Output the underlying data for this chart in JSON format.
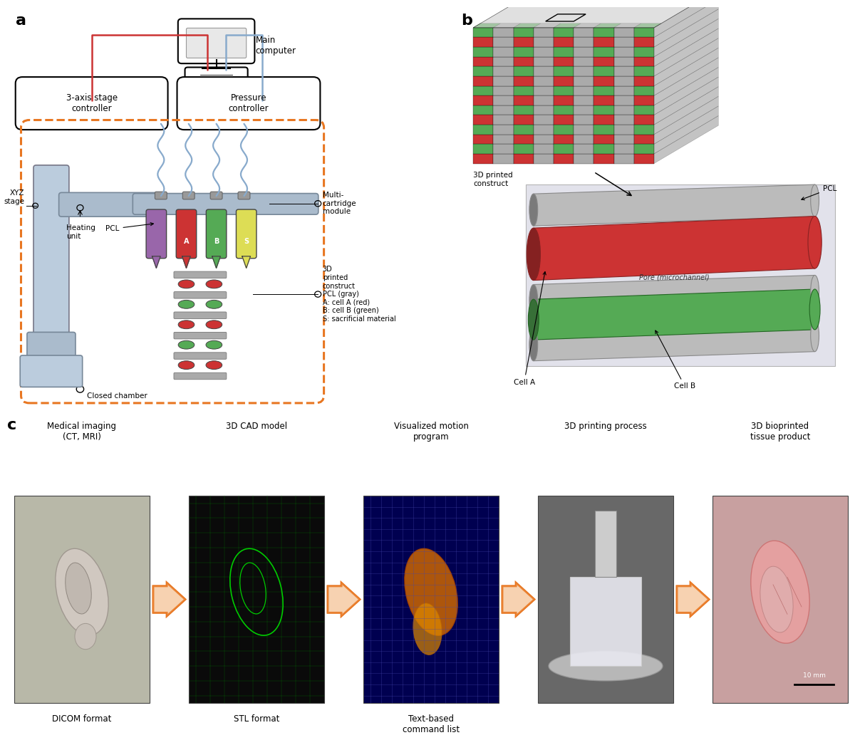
{
  "fig_width": 12.0,
  "fig_height": 10.39,
  "bg_color": "#ffffff",
  "panel_a_label": "a",
  "panel_b_label": "b",
  "panel_c_label": "c",
  "label_fontsize": 16,
  "body_fontsize": 8.5,
  "small_fontsize": 7.5,
  "orange_color": "#E87722",
  "blue_line": "#88AACC",
  "red_line": "#CC3333",
  "gray_stage": "#AABBCC",
  "purple_color": "#9966AA",
  "red_color": "#CC3333",
  "green_color": "#55AA55",
  "yellow_color": "#DDDD55",
  "pcl_gray": "#AAAAAA",
  "silver_color": "#BBBBBB",
  "multicartridge_label": "Multi-\ncartridge\nmodule",
  "printed_construct_label": "3D\nprinted\nconstruct\nPCL (gray)\nA: cell A (red)\nB: cell B (green)\nS: sacrificial material",
  "xyz_stage_label": "XYZ\nstage",
  "heating_unit_label": "Heating\nunit",
  "closed_chamber_label": "Closed chamber",
  "main_computer_label": "Main\ncomputer",
  "axis_controller_label": "3-axis stage\ncontroller",
  "pressure_controller_label": "Pressure\ncontroller",
  "pcl_label": "PCL",
  "panel_b_construct_label": "3D printed\nconstruct",
  "panel_b_pcl_label": "PCL",
  "panel_b_cella_label": "Cell A",
  "panel_b_cellb_label": "Cell B",
  "panel_b_pore_label": "Pore (microchannel)",
  "step_titles": [
    "Medical imaging\n(CT, MRI)",
    "3D CAD model",
    "Visualized motion\nprogram",
    "3D printing process",
    "3D bioprinted\ntissue product"
  ],
  "step_subtitles": [
    "DICOM format",
    "STL format",
    "Text-based\ncommand list",
    "",
    ""
  ],
  "step_bgs": [
    "#B8B8A8",
    "#0A0A0A",
    "#000050",
    "#686868",
    "#C8A0A0"
  ],
  "scalebar_label": "10 mm"
}
